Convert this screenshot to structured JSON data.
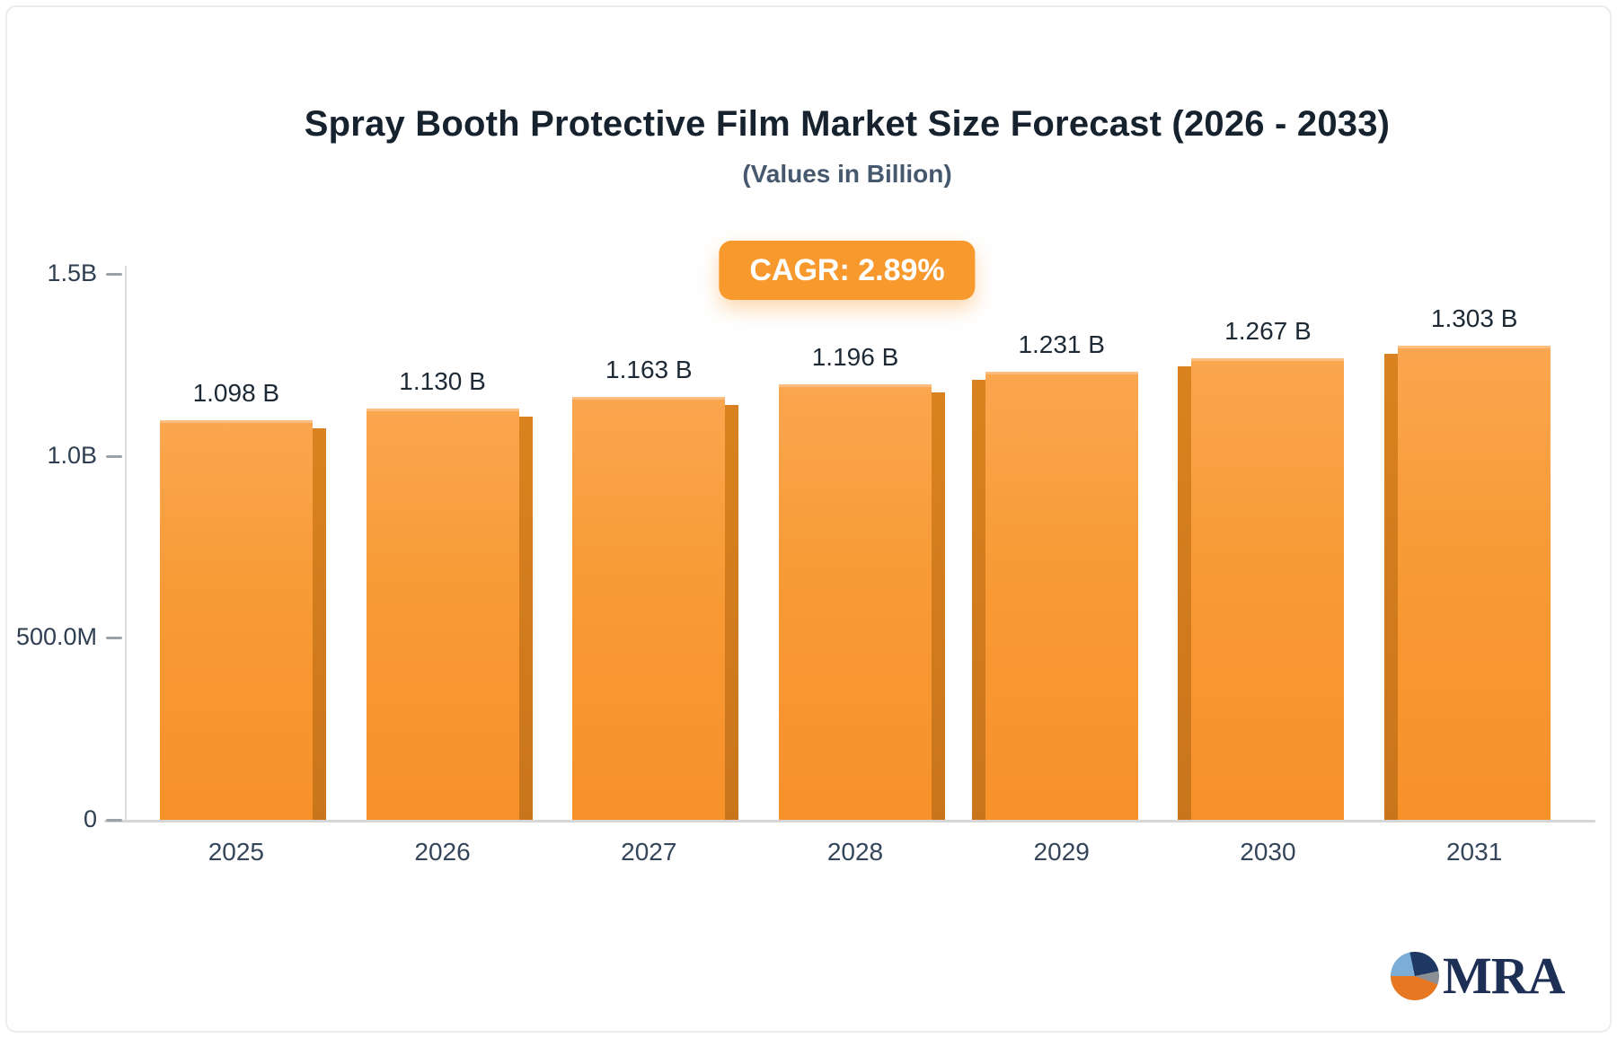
{
  "title": "Spray Booth Protective Film Market Size Forecast (2026 - 2033)",
  "subtitle": "(Values in Billion)",
  "badge": {
    "label": "CAGR: 2.89%",
    "bg": "#f8992e",
    "text_color": "#ffffff"
  },
  "chart_data": {
    "type": "bar",
    "categories": [
      "2025",
      "2026",
      "2027",
      "2028",
      "2029",
      "2030",
      "2031"
    ],
    "values": [
      1.098,
      1.13,
      1.163,
      1.196,
      1.231,
      1.267,
      1.303
    ],
    "bar_labels": [
      "1.098 B",
      "1.130 B",
      "1.163 B",
      "1.196 B",
      "1.231 B",
      "1.267 B",
      "1.303 B"
    ],
    "title": "Spray Booth Protective Film Market Size Forecast (2026 - 2033)",
    "subtitle": "(Values in Billion)",
    "xlabel": "",
    "ylabel": "",
    "ylim": [
      0,
      1.5
    ],
    "yticks": [
      {
        "value": 1.5,
        "label": "1.5B"
      },
      {
        "value": 1.0,
        "label": "1.0B"
      },
      {
        "value": 0.5,
        "label": "500.0M"
      },
      {
        "value": 0,
        "label": "0"
      }
    ],
    "grid": false,
    "legend": false,
    "bar_color": "#f8992e",
    "bar_side_color": "#cf7b1e"
  },
  "logo": {
    "text": "MRA"
  }
}
